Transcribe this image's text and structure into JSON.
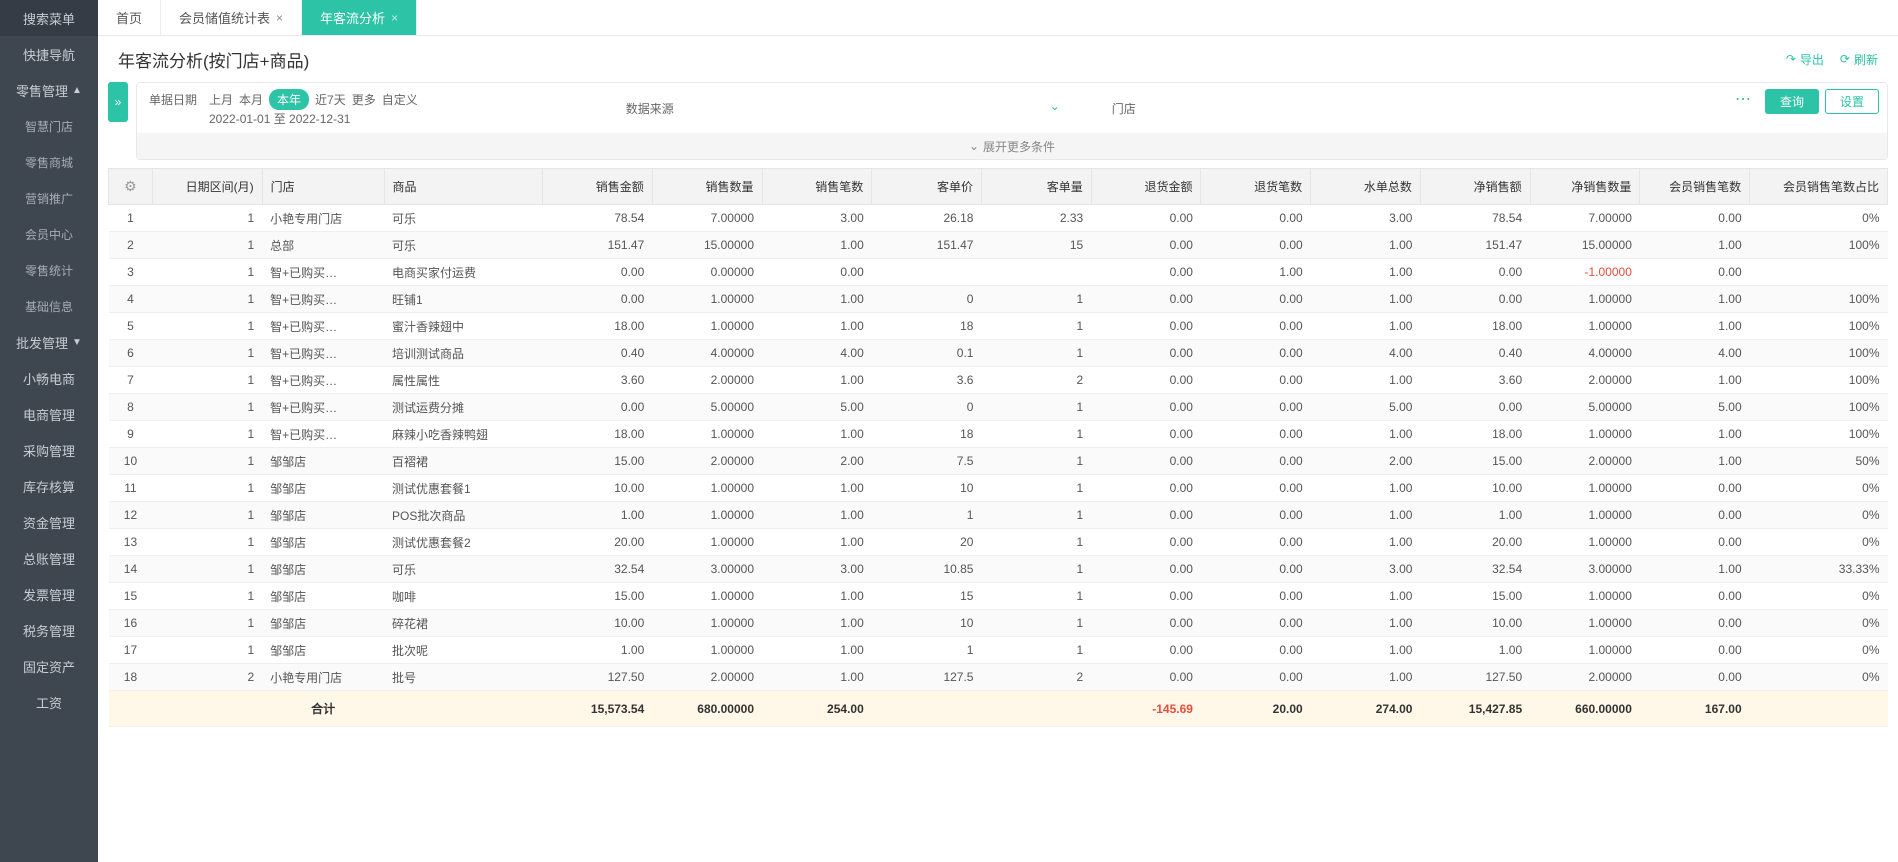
{
  "sidebar": {
    "items": [
      {
        "label": "搜索菜单",
        "indent": false
      },
      {
        "label": "快捷导航",
        "indent": false
      },
      {
        "label": "零售管理",
        "indent": false,
        "caret": "▲"
      },
      {
        "label": "智慧门店",
        "indent": true
      },
      {
        "label": "零售商城",
        "indent": true
      },
      {
        "label": "营销推广",
        "indent": true
      },
      {
        "label": "会员中心",
        "indent": true
      },
      {
        "label": "零售统计",
        "indent": true
      },
      {
        "label": "基础信息",
        "indent": true
      },
      {
        "label": "批发管理",
        "indent": false,
        "caret": "▼"
      },
      {
        "label": "小畅电商",
        "indent": false
      },
      {
        "label": "电商管理",
        "indent": false
      },
      {
        "label": "采购管理",
        "indent": false
      },
      {
        "label": "库存核算",
        "indent": false
      },
      {
        "label": "资金管理",
        "indent": false
      },
      {
        "label": "总账管理",
        "indent": false
      },
      {
        "label": "发票管理",
        "indent": false
      },
      {
        "label": "税务管理",
        "indent": false
      },
      {
        "label": "固定资产",
        "indent": false
      },
      {
        "label": "工资",
        "indent": false
      }
    ]
  },
  "tabs": [
    {
      "label": "首页",
      "closable": false
    },
    {
      "label": "会员储值统计表",
      "closable": true
    },
    {
      "label": "年客流分析",
      "closable": true,
      "active": true
    }
  ],
  "page": {
    "title": "年客流分析(按门店+商品)",
    "export": "导出",
    "refresh": "刷新"
  },
  "filter": {
    "date_label": "单据日期",
    "presets": [
      "上月",
      "本月",
      "本年",
      "近7天",
      "更多",
      "自定义"
    ],
    "active_preset": "本年",
    "date_range": "2022-01-01 至 2022-12-31",
    "source_label": "数据来源",
    "store_label": "门店",
    "query_btn": "查询",
    "settings_btn": "设置",
    "expand_more": "展开更多条件"
  },
  "table": {
    "columns": [
      "",
      "日期区间(月)",
      "门店",
      "商品",
      "销售金额",
      "销售数量",
      "销售笔数",
      "客单价",
      "客单量",
      "退货金额",
      "退货笔数",
      "水单总数",
      "净销售额",
      "净销售数量",
      "会员销售笔数",
      "会员销售笔数占比"
    ],
    "rows": [
      {
        "idx": "1",
        "period": "1",
        "store": "小艳专用门店",
        "product": "可乐",
        "amt": "78.54",
        "qty": "7.00000",
        "trans": "3.00",
        "unitprice": "26.18",
        "unitqty": "2.33",
        "retamt": "0.00",
        "rettrans": "0.00",
        "total": "3.00",
        "netamt": "78.54",
        "netqty": "7.00000",
        "memtrans": "0.00",
        "mempct": "0%"
      },
      {
        "idx": "2",
        "period": "1",
        "store": "总部",
        "product": "可乐",
        "amt": "151.47",
        "qty": "15.00000",
        "trans": "1.00",
        "unitprice": "151.47",
        "unitqty": "15",
        "retamt": "0.00",
        "rettrans": "0.00",
        "total": "1.00",
        "netamt": "151.47",
        "netqty": "15.00000",
        "memtrans": "1.00",
        "mempct": "100%"
      },
      {
        "idx": "3",
        "period": "1",
        "store": "智+已购买…",
        "product": "电商买家付运费",
        "amt": "0.00",
        "qty": "0.00000",
        "trans": "0.00",
        "unitprice": "",
        "unitqty": "",
        "retamt": "0.00",
        "rettrans": "1.00",
        "total": "1.00",
        "netamt": "0.00",
        "netqty": "-1.00000",
        "netqty_neg": true,
        "memtrans": "0.00",
        "mempct": ""
      },
      {
        "idx": "4",
        "period": "1",
        "store": "智+已购买…",
        "product": "旺铺1",
        "amt": "0.00",
        "qty": "1.00000",
        "trans": "1.00",
        "unitprice": "0",
        "unitqty": "1",
        "retamt": "0.00",
        "rettrans": "0.00",
        "total": "1.00",
        "netamt": "0.00",
        "netqty": "1.00000",
        "memtrans": "1.00",
        "mempct": "100%"
      },
      {
        "idx": "5",
        "period": "1",
        "store": "智+已购买…",
        "product": "蜜汁香辣翅中",
        "amt": "18.00",
        "qty": "1.00000",
        "trans": "1.00",
        "unitprice": "18",
        "unitqty": "1",
        "retamt": "0.00",
        "rettrans": "0.00",
        "total": "1.00",
        "netamt": "18.00",
        "netqty": "1.00000",
        "memtrans": "1.00",
        "mempct": "100%"
      },
      {
        "idx": "6",
        "period": "1",
        "store": "智+已购买…",
        "product": "培训测试商品",
        "amt": "0.40",
        "qty": "4.00000",
        "trans": "4.00",
        "unitprice": "0.1",
        "unitqty": "1",
        "retamt": "0.00",
        "rettrans": "0.00",
        "total": "4.00",
        "netamt": "0.40",
        "netqty": "4.00000",
        "memtrans": "4.00",
        "mempct": "100%"
      },
      {
        "idx": "7",
        "period": "1",
        "store": "智+已购买…",
        "product": "属性属性",
        "amt": "3.60",
        "qty": "2.00000",
        "trans": "1.00",
        "unitprice": "3.6",
        "unitqty": "2",
        "retamt": "0.00",
        "rettrans": "0.00",
        "total": "1.00",
        "netamt": "3.60",
        "netqty": "2.00000",
        "memtrans": "1.00",
        "mempct": "100%"
      },
      {
        "idx": "8",
        "period": "1",
        "store": "智+已购买…",
        "product": "测试运费分摊",
        "amt": "0.00",
        "qty": "5.00000",
        "trans": "5.00",
        "unitprice": "0",
        "unitqty": "1",
        "retamt": "0.00",
        "rettrans": "0.00",
        "total": "5.00",
        "netamt": "0.00",
        "netqty": "5.00000",
        "memtrans": "5.00",
        "mempct": "100%"
      },
      {
        "idx": "9",
        "period": "1",
        "store": "智+已购买…",
        "product": "麻辣小吃香辣鸭翅",
        "amt": "18.00",
        "qty": "1.00000",
        "trans": "1.00",
        "unitprice": "18",
        "unitqty": "1",
        "retamt": "0.00",
        "rettrans": "0.00",
        "total": "1.00",
        "netamt": "18.00",
        "netqty": "1.00000",
        "memtrans": "1.00",
        "mempct": "100%"
      },
      {
        "idx": "10",
        "period": "1",
        "store": "邹邹店",
        "product": "百褶裙",
        "amt": "15.00",
        "qty": "2.00000",
        "trans": "2.00",
        "unitprice": "7.5",
        "unitqty": "1",
        "retamt": "0.00",
        "rettrans": "0.00",
        "total": "2.00",
        "netamt": "15.00",
        "netqty": "2.00000",
        "memtrans": "1.00",
        "mempct": "50%"
      },
      {
        "idx": "11",
        "period": "1",
        "store": "邹邹店",
        "product": "测试优惠套餐1",
        "amt": "10.00",
        "qty": "1.00000",
        "trans": "1.00",
        "unitprice": "10",
        "unitqty": "1",
        "retamt": "0.00",
        "rettrans": "0.00",
        "total": "1.00",
        "netamt": "10.00",
        "netqty": "1.00000",
        "memtrans": "0.00",
        "mempct": "0%"
      },
      {
        "idx": "12",
        "period": "1",
        "store": "邹邹店",
        "product": "POS批次商品",
        "amt": "1.00",
        "qty": "1.00000",
        "trans": "1.00",
        "unitprice": "1",
        "unitqty": "1",
        "retamt": "0.00",
        "rettrans": "0.00",
        "total": "1.00",
        "netamt": "1.00",
        "netqty": "1.00000",
        "memtrans": "0.00",
        "mempct": "0%"
      },
      {
        "idx": "13",
        "period": "1",
        "store": "邹邹店",
        "product": "测试优惠套餐2",
        "amt": "20.00",
        "qty": "1.00000",
        "trans": "1.00",
        "unitprice": "20",
        "unitqty": "1",
        "retamt": "0.00",
        "rettrans": "0.00",
        "total": "1.00",
        "netamt": "20.00",
        "netqty": "1.00000",
        "memtrans": "0.00",
        "mempct": "0%"
      },
      {
        "idx": "14",
        "period": "1",
        "store": "邹邹店",
        "product": "可乐",
        "amt": "32.54",
        "qty": "3.00000",
        "trans": "3.00",
        "unitprice": "10.85",
        "unitqty": "1",
        "retamt": "0.00",
        "rettrans": "0.00",
        "total": "3.00",
        "netamt": "32.54",
        "netqty": "3.00000",
        "memtrans": "1.00",
        "mempct": "33.33%"
      },
      {
        "idx": "15",
        "period": "1",
        "store": "邹邹店",
        "product": "咖啡",
        "amt": "15.00",
        "qty": "1.00000",
        "trans": "1.00",
        "unitprice": "15",
        "unitqty": "1",
        "retamt": "0.00",
        "rettrans": "0.00",
        "total": "1.00",
        "netamt": "15.00",
        "netqty": "1.00000",
        "memtrans": "0.00",
        "mempct": "0%"
      },
      {
        "idx": "16",
        "period": "1",
        "store": "邹邹店",
        "product": "碎花裙",
        "amt": "10.00",
        "qty": "1.00000",
        "trans": "1.00",
        "unitprice": "10",
        "unitqty": "1",
        "retamt": "0.00",
        "rettrans": "0.00",
        "total": "1.00",
        "netamt": "10.00",
        "netqty": "1.00000",
        "memtrans": "0.00",
        "mempct": "0%"
      },
      {
        "idx": "17",
        "period": "1",
        "store": "邹邹店",
        "product": "批次呢",
        "amt": "1.00",
        "qty": "1.00000",
        "trans": "1.00",
        "unitprice": "1",
        "unitqty": "1",
        "retamt": "0.00",
        "rettrans": "0.00",
        "total": "1.00",
        "netamt": "1.00",
        "netqty": "1.00000",
        "memtrans": "0.00",
        "mempct": "0%"
      },
      {
        "idx": "18",
        "period": "2",
        "store": "小艳专用门店",
        "product": "批号",
        "amt": "127.50",
        "qty": "2.00000",
        "trans": "1.00",
        "unitprice": "127.5",
        "unitqty": "2",
        "retamt": "0.00",
        "rettrans": "0.00",
        "total": "1.00",
        "netamt": "127.50",
        "netqty": "2.00000",
        "memtrans": "0.00",
        "mempct": "0%"
      }
    ],
    "totals": {
      "label": "合计",
      "amt": "15,573.54",
      "qty": "680.00000",
      "trans": "254.00",
      "retamt": "-145.69",
      "rettrans": "20.00",
      "total": "274.00",
      "netamt": "15,427.85",
      "netqty": "660.00000",
      "memtrans": "167.00"
    }
  }
}
